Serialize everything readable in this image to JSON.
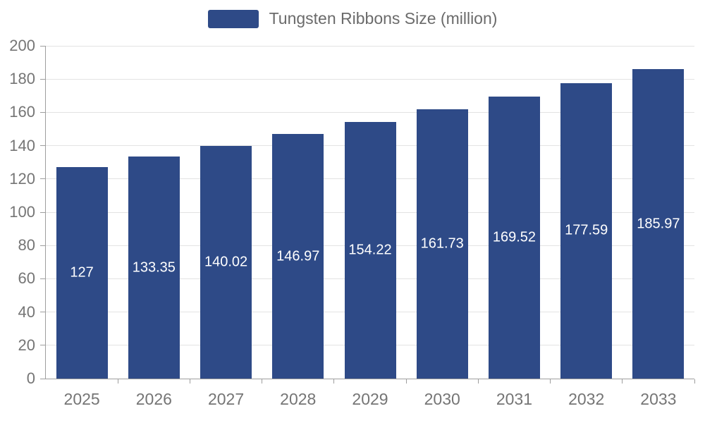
{
  "chart_data": {
    "type": "bar",
    "title": "Tungsten Ribbons Size (million)",
    "legend": "Tungsten Ribbons Size (million)",
    "legend_position": "top-center",
    "categories": [
      "2025",
      "2026",
      "2027",
      "2028",
      "2029",
      "2030",
      "2031",
      "2032",
      "2033"
    ],
    "values": [
      127,
      133.35,
      140.02,
      146.97,
      154.22,
      161.73,
      169.52,
      177.59,
      185.97
    ],
    "xlabel": "",
    "ylabel": "",
    "ylim": [
      0,
      200
    ],
    "yticks": [
      0,
      20,
      40,
      60,
      80,
      100,
      120,
      140,
      160,
      180,
      200
    ],
    "grid": true,
    "value_labels_inside_bars": true,
    "colors": {
      "bar": "#2e4a87",
      "bar_label": "#ffffff",
      "axis_text": "#757575",
      "grid_line": "#e3e3e3",
      "axis_line": "#9e9e9e"
    }
  }
}
